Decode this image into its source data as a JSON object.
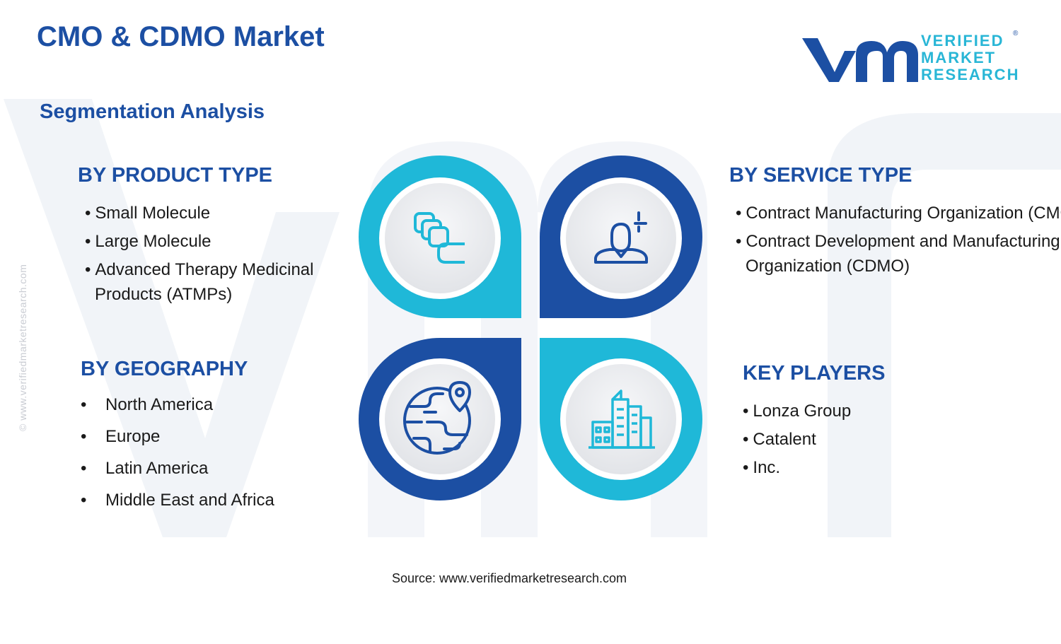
{
  "title": "CMO & CDMO Market",
  "subtitle": "Segmentation Analysis",
  "brand": {
    "lines": [
      "VERIFIED",
      "MARKET",
      "RESEARCH"
    ],
    "registered": "®",
    "side_watermark": "© www.verifiedmarketresearch.com",
    "colors": {
      "primary": "#1c4fa3",
      "accent": "#29b6d6",
      "watermark": "#eef2f7"
    }
  },
  "segments": {
    "product_type": {
      "heading": "BY PRODUCT TYPE",
      "items": [
        "Small Molecule",
        "Large Molecule",
        "Advanced Therapy Medicinal",
        "Products (ATMPs)"
      ]
    },
    "service_type": {
      "heading": "BY SERVICE TYPE",
      "items": [
        "Contract Manufacturing Organization (CMO)",
        "Contract Development and Manufacturing",
        "Organization (CDMO)"
      ]
    },
    "geography": {
      "heading": "BY GEOGRAPHY",
      "items": [
        "North America",
        "Europe",
        "Latin America",
        "Middle East and Africa"
      ]
    },
    "key_players": {
      "heading": "KEY PLAYERS",
      "items": [
        "Lonza Group",
        "Catalent",
        "Inc."
      ]
    }
  },
  "icons": {
    "top_left": "stacked-squares-icon",
    "top_right": "person-plus-icon",
    "bottom_left": "globe-location-icon",
    "bottom_right": "city-buildings-icon"
  },
  "bullet": "•",
  "source": "Source: www.verifiedmarketresearch.com"
}
